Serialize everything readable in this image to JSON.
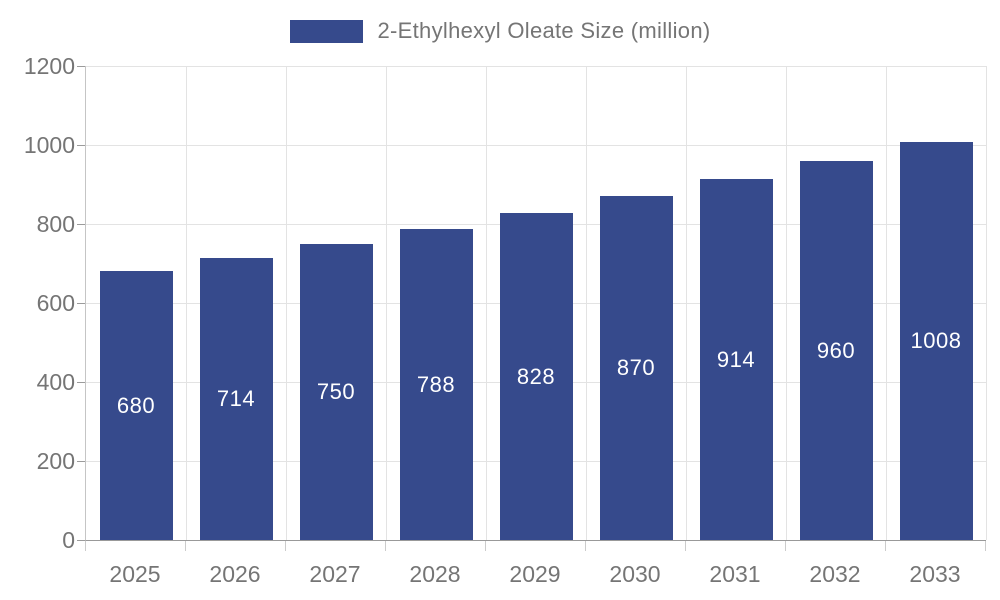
{
  "chart_data": {
    "type": "bar",
    "legend_label": "2-Ethylhexyl Oleate Size (million)",
    "categories": [
      "2025",
      "2026",
      "2027",
      "2028",
      "2029",
      "2030",
      "2031",
      "2032",
      "2033"
    ],
    "values": [
      680,
      714,
      750,
      788,
      828,
      870,
      914,
      960,
      1008
    ],
    "ylim": [
      0,
      1200
    ],
    "yticks": [
      0,
      200,
      400,
      600,
      800,
      1000,
      1200
    ],
    "grid": true,
    "legend_position": "top",
    "xlabel": "",
    "ylabel": "",
    "colors": {
      "bar": "#364A8C",
      "axis_text": "#757575",
      "gridline": "#e3e3e3",
      "bar_value_text": "#ffffff"
    }
  }
}
